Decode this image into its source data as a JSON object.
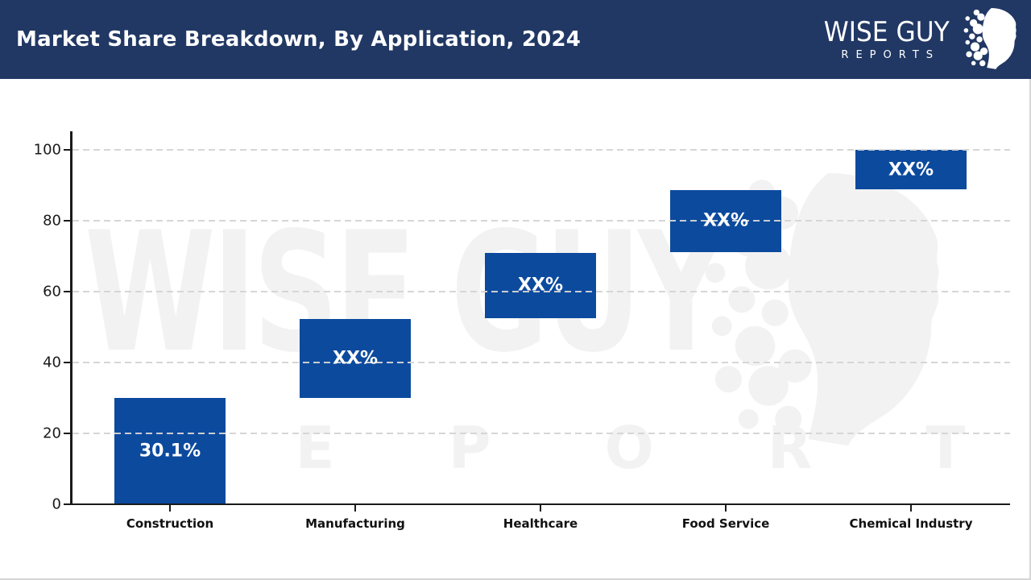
{
  "header": {
    "title": "Market Share Breakdown, By Application, 2024",
    "background_color": "#213864",
    "logo": {
      "line1": "WISE GUY",
      "line2": "REPORTS"
    }
  },
  "watermark": {
    "line1": "WISE GUY",
    "line2": "R E P O R T S",
    "color": "#f2f2f2"
  },
  "chart_data": {
    "type": "bar",
    "subtype": "waterfall",
    "title": "Market Share Breakdown, By Application, 2024",
    "xlabel": "",
    "ylabel": "",
    "categories": [
      "Construction",
      "Manufacturing",
      "Healthcare",
      "Food Service",
      "Chemical Industry"
    ],
    "segments": [
      {
        "category": "Construction",
        "label": "30.1%",
        "start": 0,
        "end": 30.1
      },
      {
        "category": "Manufacturing",
        "label": "XX%",
        "start": 30.1,
        "end": 52.3
      },
      {
        "category": "Healthcare",
        "label": "XX%",
        "start": 52.6,
        "end": 71.0
      },
      {
        "category": "Food Service",
        "label": "XX%",
        "start": 71.2,
        "end": 88.6
      },
      {
        "category": "Chemical Industry",
        "label": "XX%",
        "start": 88.8,
        "end": 100.0
      }
    ],
    "y_ticks": [
      0,
      20,
      40,
      60,
      80,
      100
    ],
    "ylim": [
      0,
      105
    ],
    "bar_color": "#0c4a9e",
    "bar_label_color": "#ffffff",
    "grid": "horizontal dashed",
    "grid_color": "#d4d4d4",
    "legend": "none"
  }
}
